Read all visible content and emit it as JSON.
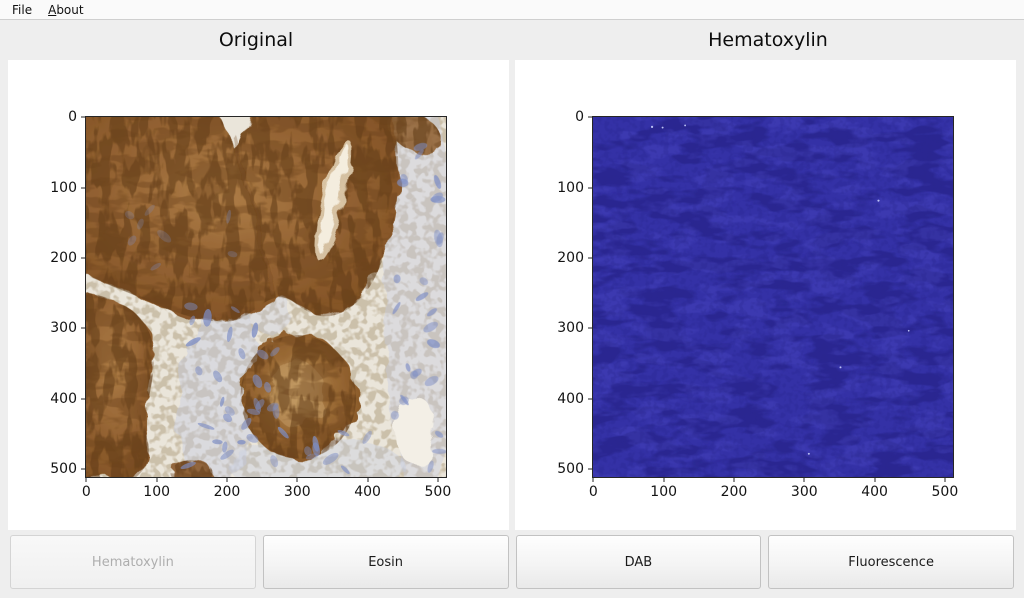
{
  "menubar": {
    "items": [
      {
        "label": "File"
      },
      {
        "label": "About",
        "label_accel": "A",
        "label_rest": "bout"
      }
    ]
  },
  "panels": [
    {
      "title": "Original",
      "image": "ihc-histology-original",
      "axis": {
        "xticks": [
          0,
          100,
          200,
          300,
          400,
          500
        ],
        "yticks": [
          0,
          100,
          200,
          300,
          400,
          500
        ],
        "data_extent": 512
      },
      "buttons": [
        {
          "label": "Hematoxylin",
          "disabled": true
        },
        {
          "label": "Eosin",
          "disabled": false
        }
      ]
    },
    {
      "title": "Hematoxylin",
      "image": "hematoxylin-channel",
      "axis": {
        "xticks": [
          0,
          100,
          200,
          300,
          400,
          500
        ],
        "yticks": [
          0,
          100,
          200,
          300,
          400,
          500
        ],
        "data_extent": 512
      },
      "buttons": [
        {
          "label": "DAB",
          "disabled": false
        },
        {
          "label": "Fluorescence",
          "disabled": false
        }
      ]
    }
  ],
  "colors": {
    "window_bg": "#eeeeee",
    "menubar_bg": "#fafafa",
    "canvas_bg": "#ffffff",
    "hematoxylin_blue": "#3431a6",
    "dab_brown": "#8a5a2c",
    "stroma_nuclei_blue": "#7e8ec5",
    "disabled_text": "#aeaeae"
  }
}
